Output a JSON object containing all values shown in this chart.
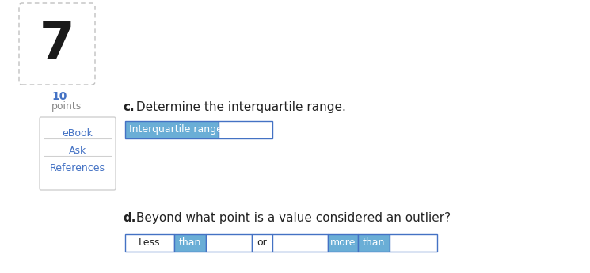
{
  "bg_color": "#ffffff",
  "number": "7",
  "points_label": "10",
  "points_sub": "points",
  "sidebar_links": [
    "eBook",
    "Ask",
    "References"
  ],
  "section_c_label": "c.",
  "section_c_text": " Determine the interquartile range.",
  "iqr_label": "Interquartile range",
  "iqr_box_filled_color": "#6aaed6",
  "iqr_box_empty_color": "#ffffff",
  "iqr_border_color": "#4472c4",
  "section_d_label": "d.",
  "section_d_text": " Beyond what point is a value considered an outlier?",
  "link_color": "#4472c4",
  "text_color": "#222222",
  "border_color": "#c8c8c8",
  "sidebar_border": "#d0d0d0",
  "number_box_border": "#c0c0c0",
  "less_color": "#ffffff",
  "than_color": "#6aaed6",
  "more_color": "#6aaed6"
}
